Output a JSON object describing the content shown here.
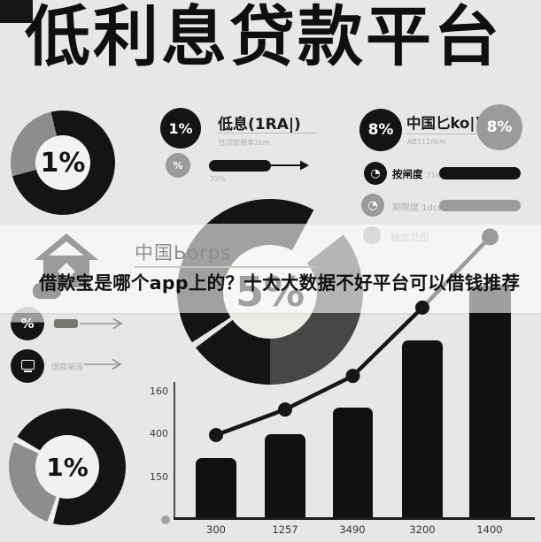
{
  "page": {
    "bg": "#e8e7e5",
    "accent_black": "#141414",
    "accent_gray": "#8d8d8d"
  },
  "header": {
    "title": "低利息贷款平台"
  },
  "donut_top_left": {
    "value": "1%"
  },
  "mid_block": {
    "badge": "1%",
    "heading": "低息(1RA|)",
    "subtitle": "性贷款费率2km",
    "percent_badge": "%",
    "caption": "33%"
  },
  "right_block": {
    "badge": "8%",
    "heading": "中国匕ko|)",
    "subtitle": "AB1116km",
    "side_badge": "8%",
    "rows": [
      {
        "label": "按闸度",
        "sub": "71nm"
      },
      {
        "label": "期限度 1dcd",
        "sub": ""
      },
      {
        "label": "额度范围",
        "sub": ""
      }
    ]
  },
  "overlay": {
    "brand": "中国Ьorps",
    "headline": "借款宝是哪个app上的？十大大数据不好平台可以借钱推荐"
  },
  "donut_center": {
    "value": "5%"
  },
  "left_block": {
    "percent_badge": "%",
    "channel_label": "借款渠道"
  },
  "donut_bottom_left": {
    "value": "1%"
  },
  "icons": {
    "clock_glyph": "◔"
  },
  "chart_data": {
    "type": "bar",
    "title": "",
    "categories": [
      "300",
      "1257",
      "3490",
      "3200",
      "1400"
    ],
    "series": [
      {
        "name": "amount-bars",
        "type": "bar",
        "values_relative": [
          0.255,
          0.36,
          0.475,
          0.765,
          1.0
        ]
      },
      {
        "name": "trend-line",
        "type": "line",
        "values_relative": [
          0.355,
          0.465,
          0.61,
          0.905,
          1.21
        ]
      }
    ],
    "y_tick_labels": [
      "160",
      "400",
      "150"
    ],
    "xlabel": "",
    "ylabel": "",
    "grid": "dashed-horizontal",
    "legend": "none",
    "note": "axis numbers are decorative pseudo-text in the source infographic"
  }
}
